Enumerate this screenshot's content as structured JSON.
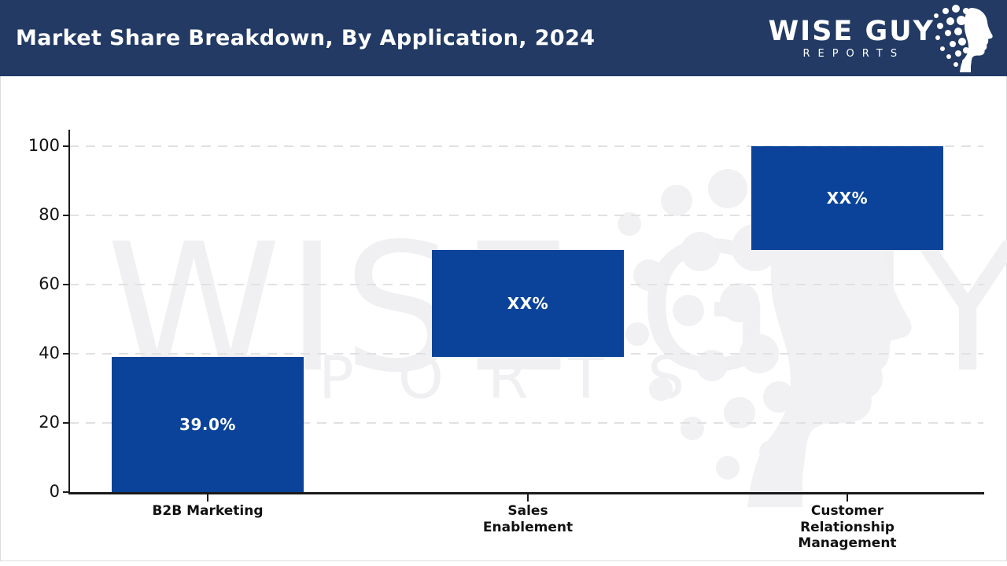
{
  "header": {
    "title": "Market Share Breakdown, By Application, 2024",
    "bg_color": "#223a64",
    "logo": {
      "line1": "WISE GUY",
      "line2": "REPORTS"
    }
  },
  "watermark": {
    "line1": "WISE GUY",
    "line2": "REPORTS"
  },
  "chart_data": {
    "type": "bar",
    "subtype": "floating-segment-bars",
    "title": "Market Share Breakdown, By Application, 2024",
    "xlabel": "",
    "ylabel": "",
    "ylim": [
      0,
      100
    ],
    "yticks": [
      0,
      20,
      40,
      60,
      80,
      100
    ],
    "grid": "horizontal-dashed",
    "legend": "none",
    "bar_color": "#0a4399",
    "bar_label_color": "#ffffff",
    "categories": [
      "B2B Marketing",
      "Sales Enablement",
      "Customer Relationship Management"
    ],
    "series": [
      {
        "name": "Market Share",
        "segments": [
          {
            "category": "B2B Marketing",
            "start": 0,
            "end": 39,
            "value": 39,
            "label": "39.0%"
          },
          {
            "category": "Sales Enablement",
            "start": 39,
            "end": 70,
            "value": 31,
            "label": "XX%"
          },
          {
            "category": "Customer Relationship Management",
            "start": 70,
            "end": 100,
            "value": 30,
            "label": "XX%"
          }
        ]
      }
    ]
  }
}
